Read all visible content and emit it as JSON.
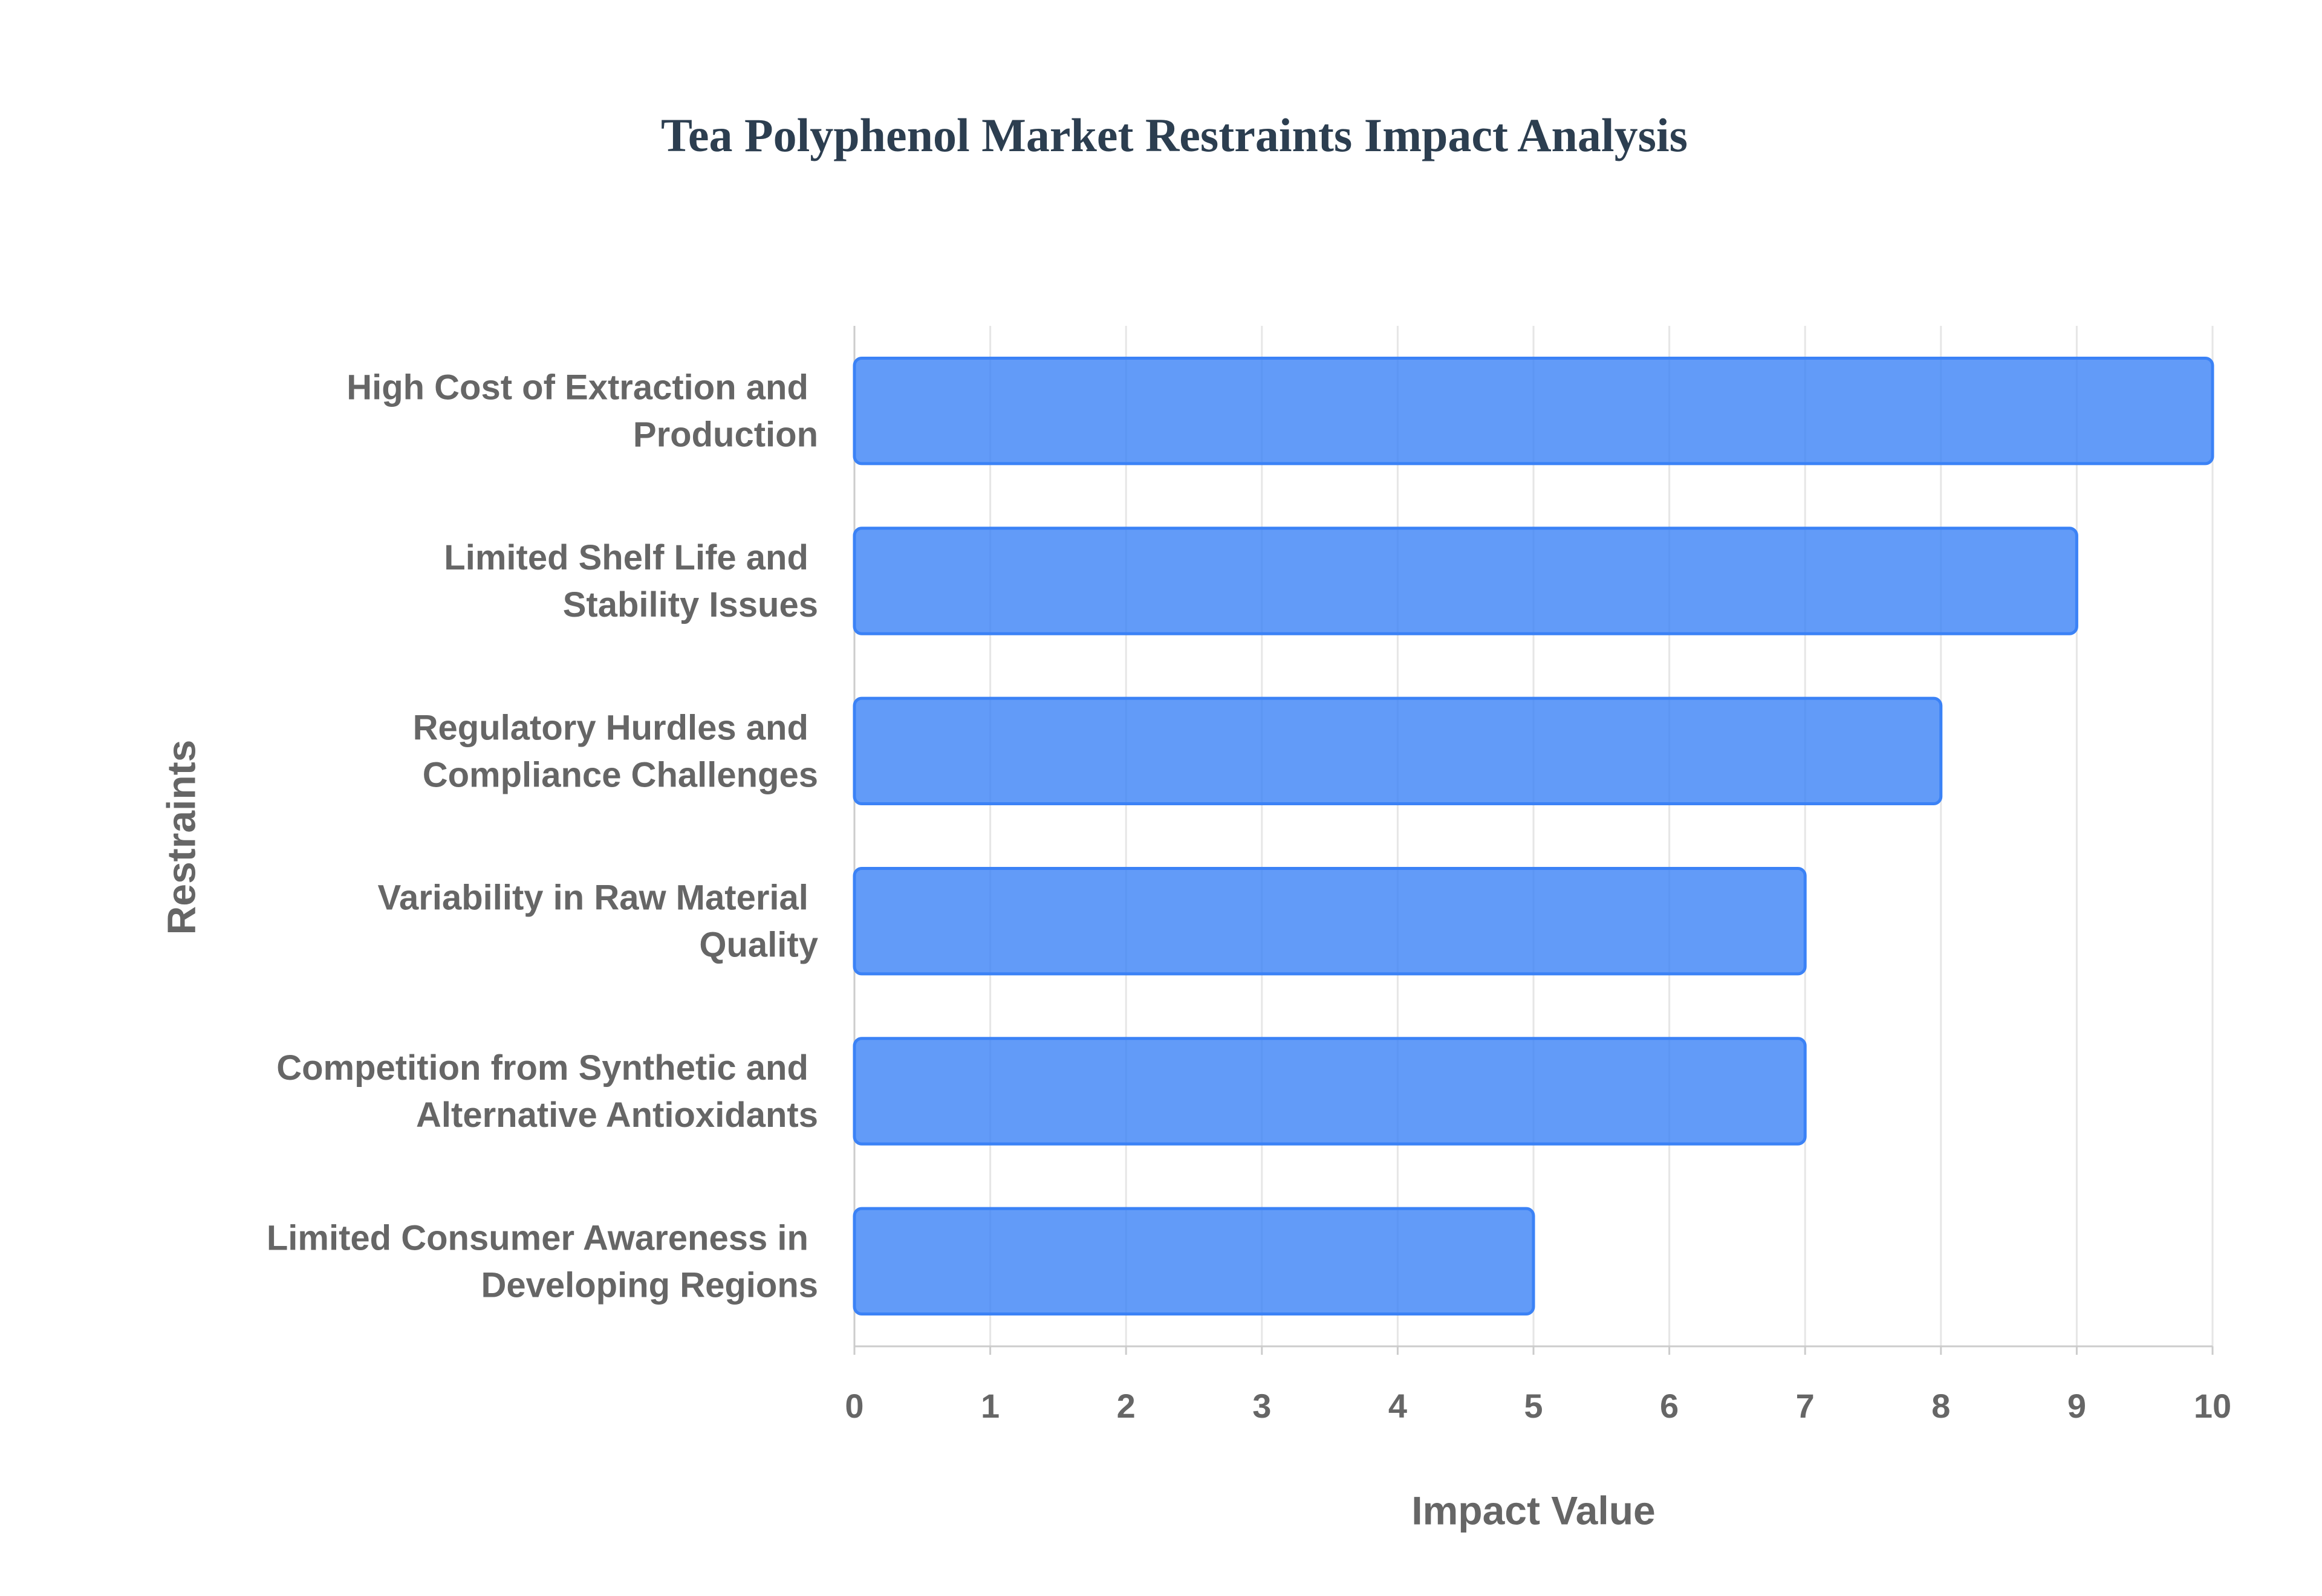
{
  "chart_data": {
    "type": "bar",
    "orientation": "horizontal",
    "title": "Tea Polyphenol Market Restraints Impact Analysis",
    "x_label": "Impact Value",
    "y_label": "Restraints",
    "categories": [
      "High Cost of Extraction and Production",
      "Limited Shelf Life and Stability Issues",
      "Regulatory Hurdles and Compliance Challenges",
      "Variability in Raw Material Quality",
      "Competition from Synthetic and Alternative Antioxidants",
      "Limited Consumer Awareness in Developing Regions"
    ],
    "values": [
      10,
      9,
      8,
      7,
      7,
      5
    ],
    "color": "#3b82f6",
    "xlim": [
      0,
      10
    ],
    "xticks": [
      0,
      1,
      2,
      3,
      4,
      5,
      6,
      7,
      8,
      9,
      10
    ],
    "grid": true
  }
}
